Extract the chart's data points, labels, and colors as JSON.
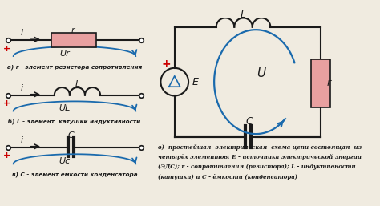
{
  "bg_color": "#f0ebe0",
  "resistor_color": "#e8a0a0",
  "wire_color": "#1a1a1a",
  "arrow_color": "#1a6aad",
  "text_color": "#1a1a1a",
  "plus_color": "#cc0000",
  "label_a": "а) r - элемент резистора сопротивления",
  "label_b": "б) L - элемент  катушки индуктивности",
  "label_c": "в) C - элемент ёмкости конденсатора",
  "caption_line1": "в)  простейшая  электрическая  схема цепи состоящая  из",
  "caption_line2": "четырёх элементов: E - источника электрической энергии",
  "caption_line3": "(ЭДС); r - сопротивления (резистора); L - индуктивности",
  "caption_line4": "(катушки) и С - ёмкости (конденсатора)",
  "ur_label": "Ur",
  "ul_label": "UL",
  "uc_label": "Uc",
  "i_label": "i",
  "r_label": "r",
  "l_label": "L",
  "c_label": "C",
  "e_label": "E",
  "u_label": "U",
  "r_label2": "r",
  "l_label2": "L"
}
